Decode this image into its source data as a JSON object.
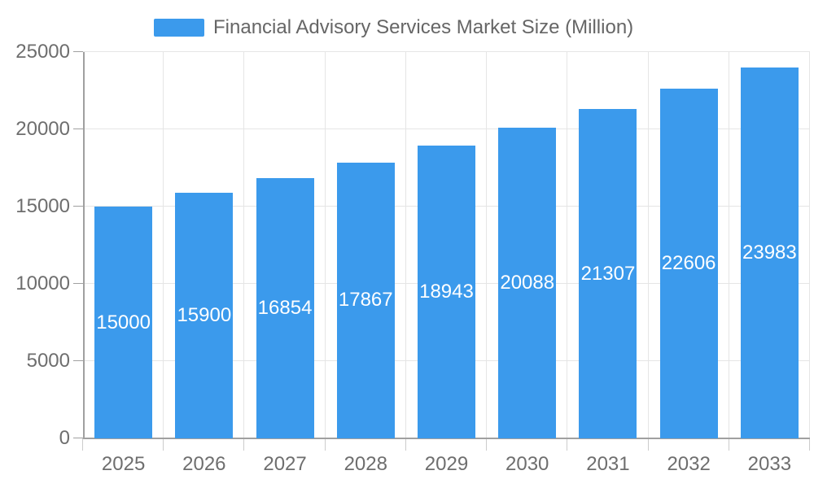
{
  "chart_data": {
    "type": "bar",
    "title": "Financial Advisory Services Market Size (Million)",
    "categories": [
      "2025",
      "2026",
      "2027",
      "2028",
      "2029",
      "2030",
      "2031",
      "2032",
      "2033"
    ],
    "values": [
      15000,
      15900,
      16854,
      17867,
      18943,
      20088,
      21307,
      22606,
      23983
    ],
    "xlabel": "",
    "ylabel": "",
    "ylim": [
      0,
      25000
    ],
    "yticks": [
      0,
      5000,
      10000,
      15000,
      20000,
      25000
    ],
    "grid": true,
    "legend_position": "top",
    "value_labels": "inside-center",
    "colors": {
      "bar": "#3B9AEC",
      "value_label": "#FFFFFF",
      "title_text": "#666666",
      "axis_text": "#6E6E6E",
      "axis_line": "#A0A0A0",
      "gridline": "#E5E5E5",
      "tick": "#CCCCCC"
    }
  }
}
